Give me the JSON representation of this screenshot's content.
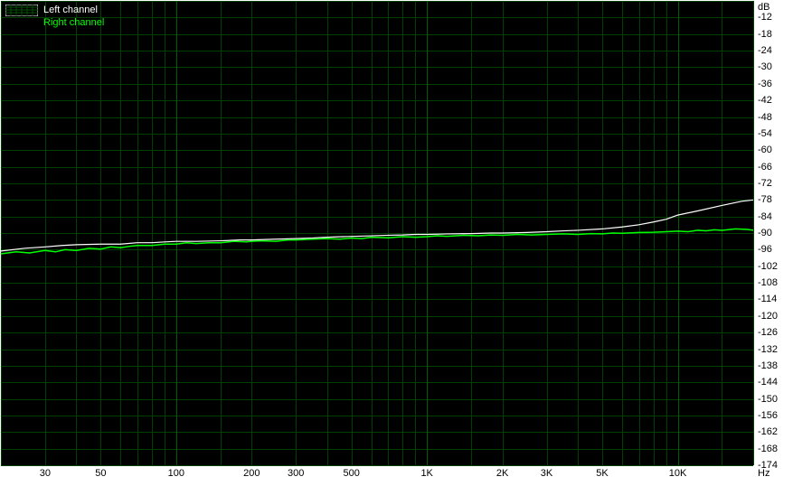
{
  "chart": {
    "type": "line",
    "background_color": "#000000",
    "grid_color": "#004000",
    "grid_color_major": "#006000",
    "x_axis": {
      "unit": "Hz",
      "scale": "log",
      "min": 20,
      "max": 20000,
      "ticks": [
        20,
        30,
        40,
        50,
        60,
        70,
        80,
        90,
        100,
        150,
        200,
        300,
        400,
        500,
        600,
        700,
        800,
        900,
        1000,
        1500,
        2000,
        3000,
        4000,
        5000,
        6000,
        7000,
        8000,
        9000,
        10000,
        15000,
        20000
      ],
      "major_ticks": [
        100,
        1000,
        10000
      ],
      "labels": [
        {
          "value": 30,
          "text": "30"
        },
        {
          "value": 50,
          "text": "50"
        },
        {
          "value": 100,
          "text": "100"
        },
        {
          "value": 200,
          "text": "200"
        },
        {
          "value": 300,
          "text": "300"
        },
        {
          "value": 500,
          "text": "500"
        },
        {
          "value": 1000,
          "text": "1K"
        },
        {
          "value": 2000,
          "text": "2K"
        },
        {
          "value": 3000,
          "text": "3K"
        },
        {
          "value": 5000,
          "text": "5K"
        },
        {
          "value": 10000,
          "text": "10K"
        }
      ]
    },
    "y_axis": {
      "unit": "dB",
      "scale": "linear",
      "min": -174,
      "max": -6,
      "step": 6,
      "labels": [
        -12,
        -18,
        -24,
        -30,
        -36,
        -42,
        -48,
        -54,
        -60,
        -66,
        -72,
        -78,
        -84,
        -90,
        -96,
        -102,
        -108,
        -114,
        -120,
        -126,
        -132,
        -138,
        -144,
        -150,
        -156,
        -162,
        -168,
        -174
      ]
    },
    "legend": {
      "items": [
        {
          "label": "Left channel",
          "color": "#ffffff",
          "swatch_type": "grid"
        },
        {
          "label": "Right channel",
          "color": "#00ff00",
          "swatch_type": "none"
        }
      ]
    },
    "series": [
      {
        "name": "Left channel",
        "color": "#ffffff",
        "line_width": 1.2,
        "points": [
          [
            20,
            -96.5
          ],
          [
            25,
            -95.5
          ],
          [
            30,
            -95.0
          ],
          [
            35,
            -94.5
          ],
          [
            40,
            -94.2
          ],
          [
            50,
            -94.0
          ],
          [
            60,
            -94.0
          ],
          [
            70,
            -93.5
          ],
          [
            80,
            -93.5
          ],
          [
            90,
            -93.2
          ],
          [
            100,
            -93.0
          ],
          [
            120,
            -93.0
          ],
          [
            150,
            -92.8
          ],
          [
            180,
            -92.5
          ],
          [
            200,
            -92.5
          ],
          [
            250,
            -92.2
          ],
          [
            300,
            -92.0
          ],
          [
            350,
            -91.8
          ],
          [
            400,
            -91.5
          ],
          [
            500,
            -91.2
          ],
          [
            600,
            -91.0
          ],
          [
            700,
            -90.8
          ],
          [
            800,
            -90.7
          ],
          [
            900,
            -90.5
          ],
          [
            1000,
            -90.5
          ],
          [
            1200,
            -90.3
          ],
          [
            1500,
            -90.2
          ],
          [
            1800,
            -90.0
          ],
          [
            2000,
            -90.0
          ],
          [
            2500,
            -89.8
          ],
          [
            3000,
            -89.5
          ],
          [
            3500,
            -89.2
          ],
          [
            4000,
            -89.0
          ],
          [
            5000,
            -88.5
          ],
          [
            6000,
            -87.8
          ],
          [
            7000,
            -87.0
          ],
          [
            8000,
            -86.0
          ],
          [
            9000,
            -85.0
          ],
          [
            10000,
            -83.5
          ],
          [
            12000,
            -82.0
          ],
          [
            15000,
            -80.0
          ],
          [
            18000,
            -78.5
          ],
          [
            20000,
            -78.0
          ]
        ]
      },
      {
        "name": "Right channel",
        "color": "#00ff00",
        "line_width": 1.5,
        "points": [
          [
            20,
            -97.5
          ],
          [
            23,
            -96.8
          ],
          [
            26,
            -97.2
          ],
          [
            30,
            -96.3
          ],
          [
            33,
            -96.8
          ],
          [
            36,
            -96.0
          ],
          [
            40,
            -96.3
          ],
          [
            45,
            -95.5
          ],
          [
            50,
            -95.8
          ],
          [
            55,
            -95.0
          ],
          [
            60,
            -95.3
          ],
          [
            65,
            -94.8
          ],
          [
            70,
            -94.5
          ],
          [
            80,
            -94.5
          ],
          [
            90,
            -94.0
          ],
          [
            100,
            -94.0
          ],
          [
            110,
            -93.5
          ],
          [
            120,
            -93.8
          ],
          [
            135,
            -93.5
          ],
          [
            150,
            -93.5
          ],
          [
            170,
            -93.0
          ],
          [
            190,
            -93.2
          ],
          [
            200,
            -93.0
          ],
          [
            220,
            -92.8
          ],
          [
            250,
            -93.0
          ],
          [
            280,
            -92.5
          ],
          [
            300,
            -92.5
          ],
          [
            350,
            -92.2
          ],
          [
            400,
            -92.0
          ],
          [
            450,
            -92.2
          ],
          [
            500,
            -91.8
          ],
          [
            550,
            -92.0
          ],
          [
            600,
            -91.5
          ],
          [
            700,
            -91.7
          ],
          [
            800,
            -91.3
          ],
          [
            900,
            -91.5
          ],
          [
            1000,
            -91.3
          ],
          [
            1100,
            -91.0
          ],
          [
            1200,
            -91.2
          ],
          [
            1400,
            -90.8
          ],
          [
            1600,
            -91.0
          ],
          [
            1800,
            -90.7
          ],
          [
            2000,
            -90.8
          ],
          [
            2300,
            -90.5
          ],
          [
            2600,
            -90.7
          ],
          [
            3000,
            -90.5
          ],
          [
            3500,
            -90.3
          ],
          [
            4000,
            -90.5
          ],
          [
            4500,
            -90.2
          ],
          [
            5000,
            -90.3
          ],
          [
            5500,
            -90.0
          ],
          [
            6000,
            -90.1
          ],
          [
            7000,
            -89.8
          ],
          [
            8000,
            -89.7
          ],
          [
            9000,
            -89.5
          ],
          [
            10000,
            -89.3
          ],
          [
            11000,
            -89.5
          ],
          [
            12000,
            -89.0
          ],
          [
            13000,
            -89.2
          ],
          [
            14000,
            -88.8
          ],
          [
            15000,
            -89.0
          ],
          [
            17000,
            -88.5
          ],
          [
            19000,
            -88.7
          ],
          [
            20000,
            -89.0
          ]
        ]
      }
    ]
  }
}
